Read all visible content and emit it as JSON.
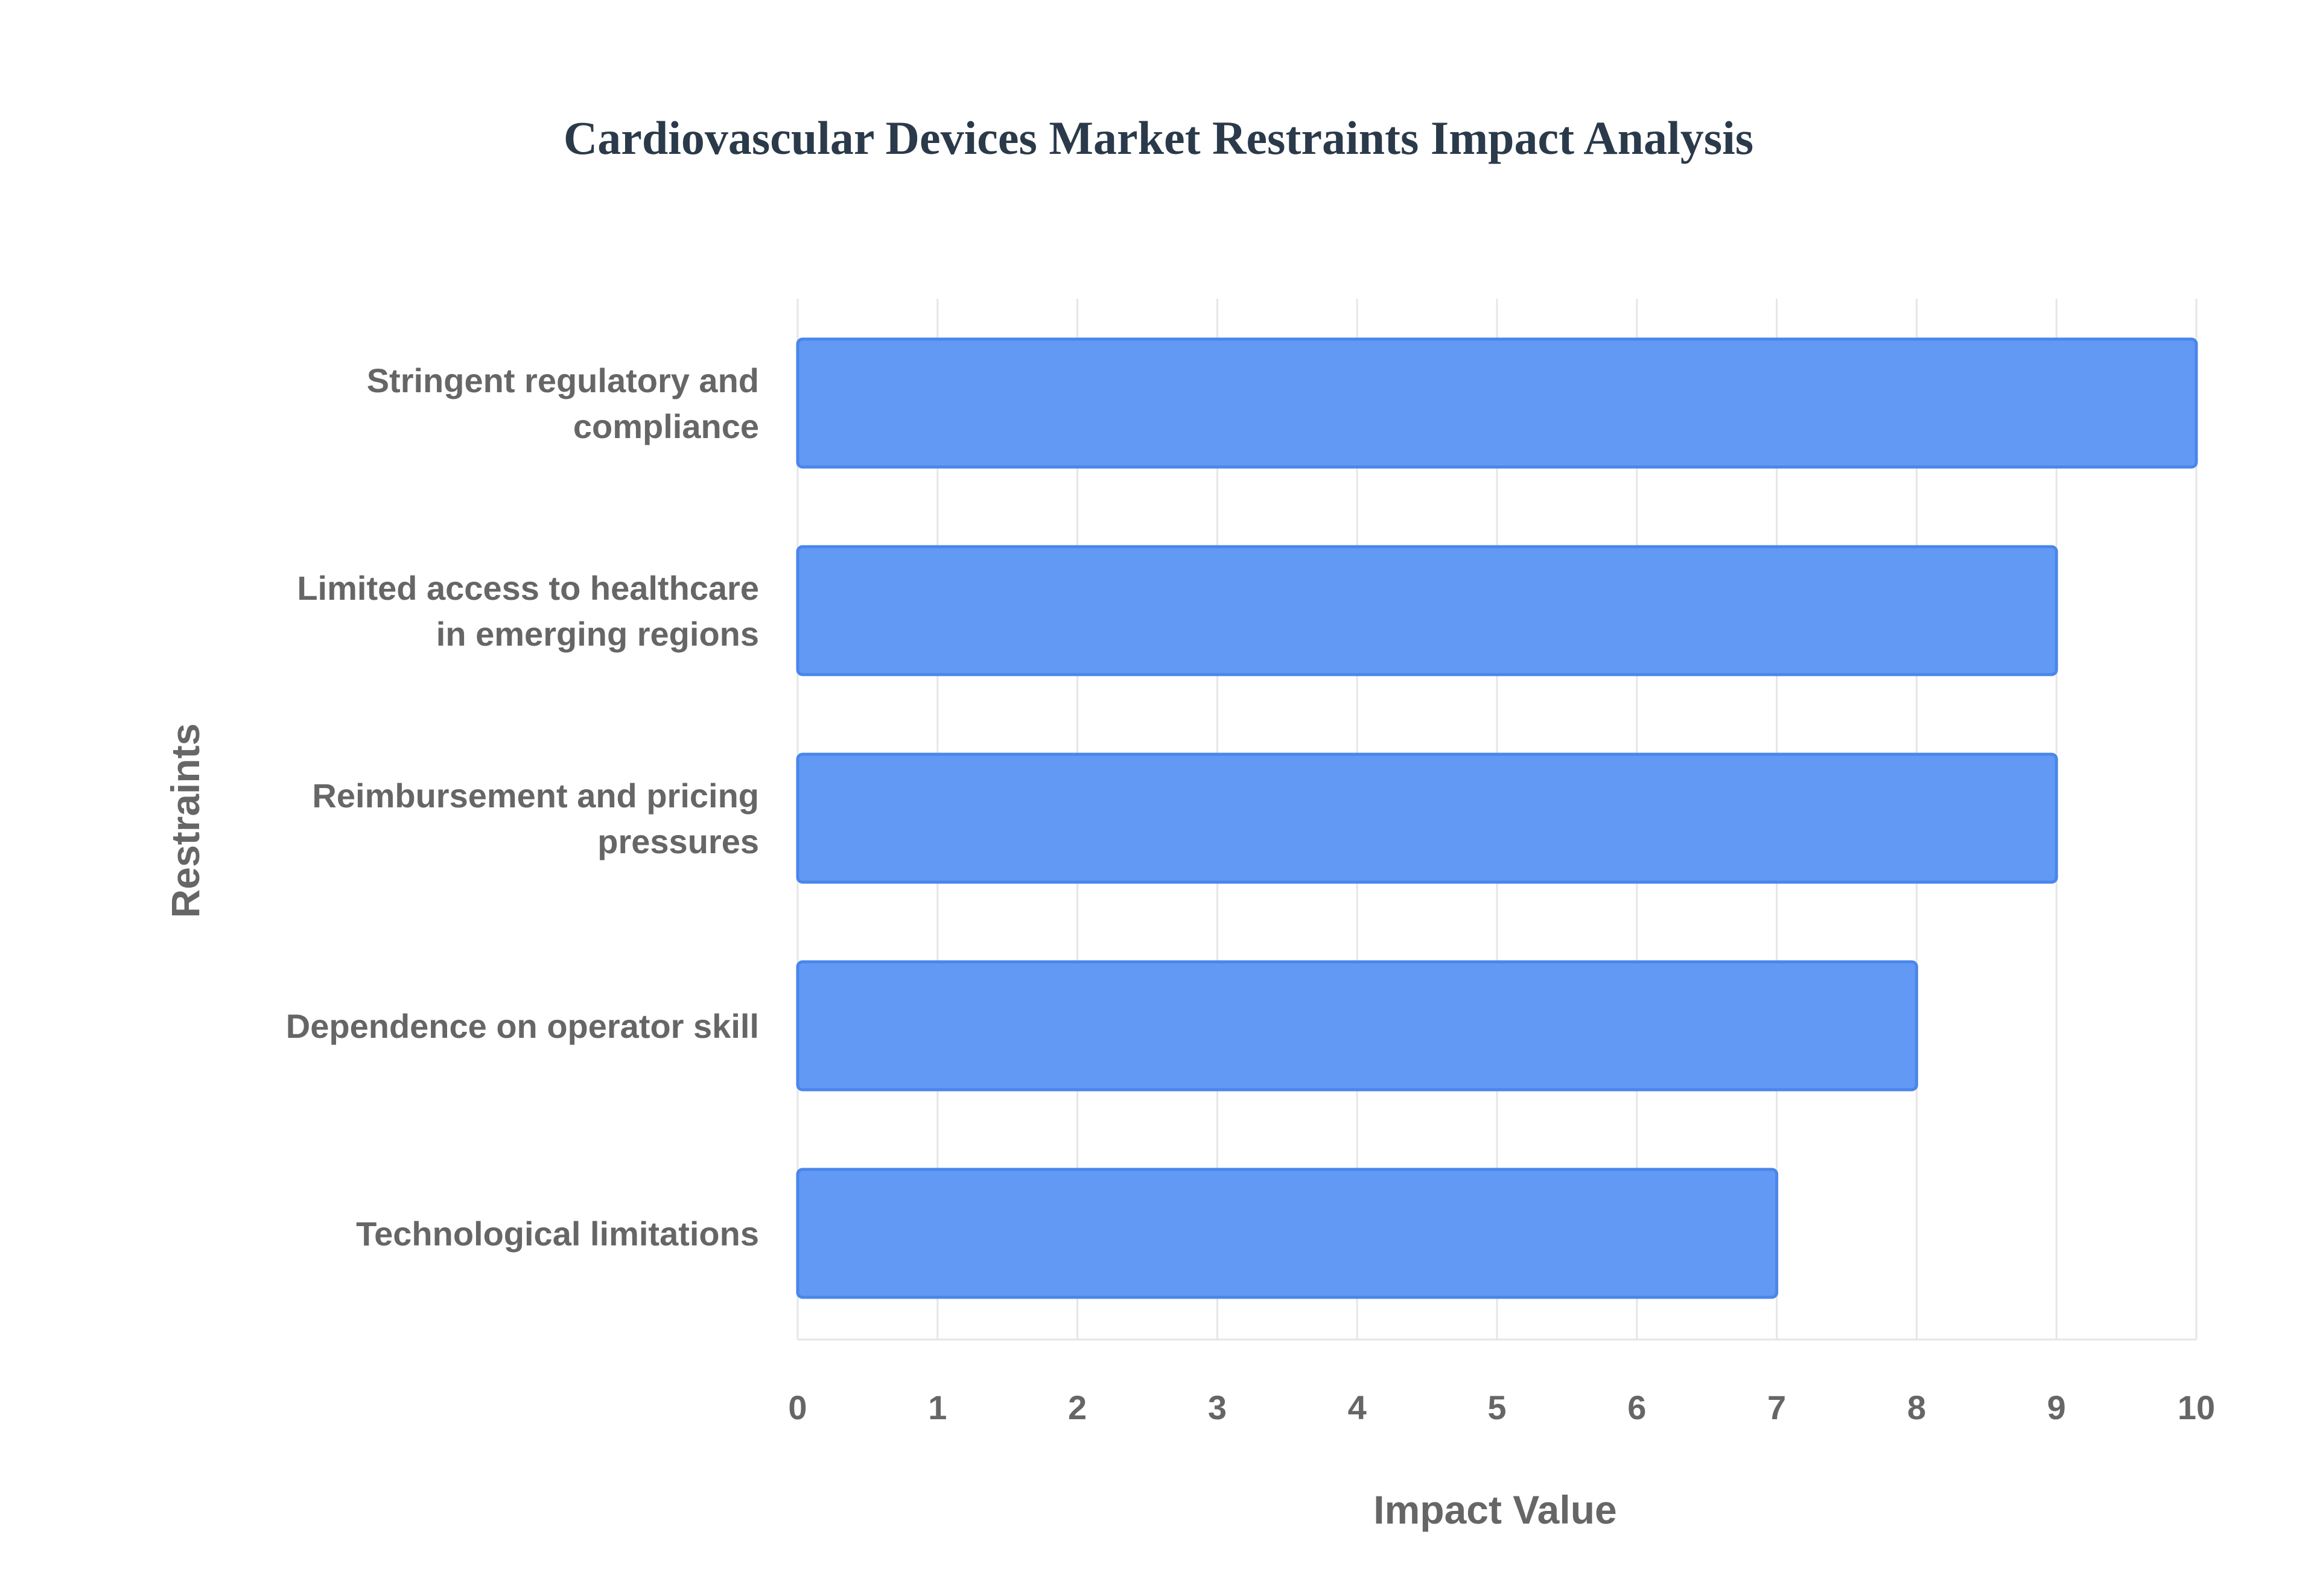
{
  "chart_data": {
    "type": "bar",
    "orientation": "horizontal",
    "title": "Cardiovascular Devices Market Restraints Impact Analysis",
    "xlabel": "Impact Value",
    "ylabel": "Restraints",
    "categories": [
      "Stringent regulatory and compliance",
      "Limited access to healthcare in emerging regions",
      "Reimbursement and pricing pressures",
      "Dependence on operator skill",
      "Technological limitations"
    ],
    "category_label_lines": [
      [
        "Stringent regulatory and",
        "compliance"
      ],
      [
        "Limited access to healthcare",
        "in emerging regions"
      ],
      [
        "Reimbursement and pricing",
        "pressures"
      ],
      [
        "Dependence on operator skill"
      ],
      [
        "Technological limitations"
      ]
    ],
    "values": [
      10,
      9,
      9,
      8,
      7
    ],
    "xlim": [
      0,
      10
    ],
    "xticks": [
      "0",
      "1",
      "2",
      "3",
      "4",
      "5",
      "6",
      "7",
      "8",
      "9",
      "10"
    ],
    "grid": true,
    "legend": "none",
    "colors": {
      "bar_fill": "#6299f5",
      "bar_stroke": "#4a86ea",
      "title": "#2b3a4a",
      "text": "#666666",
      "grid": "#e6e6e6"
    }
  }
}
